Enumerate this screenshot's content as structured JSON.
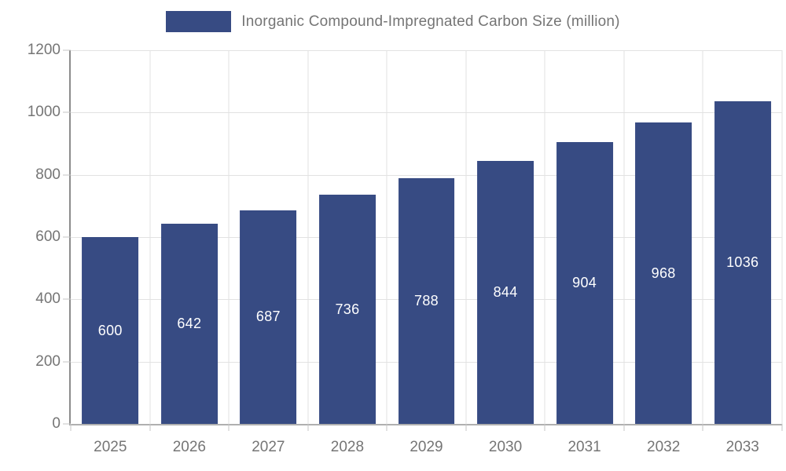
{
  "legend": {
    "label": "Inorganic Compound-Impregnated Carbon Size (million)",
    "swatch_color": "#374B83"
  },
  "chart_data": {
    "type": "bar",
    "title": "",
    "categories": [
      "2025",
      "2026",
      "2027",
      "2028",
      "2029",
      "2030",
      "2031",
      "2032",
      "2033"
    ],
    "series": [
      {
        "name": "Inorganic Compound-Impregnated Carbon Size (million)",
        "values": [
          600,
          642,
          687,
          736,
          788,
          844,
          904,
          968,
          1036
        ]
      }
    ],
    "xlabel": "",
    "ylabel": "",
    "ylim": [
      0,
      1200
    ],
    "yticks": [
      0,
      200,
      400,
      600,
      800,
      1000,
      1200
    ],
    "grid": true,
    "legend_position": "top",
    "bar_color": "#374B83",
    "value_label_color": "#ffffff",
    "axis_text_color": "#757575",
    "gridline_color": "#e2e2e2"
  }
}
